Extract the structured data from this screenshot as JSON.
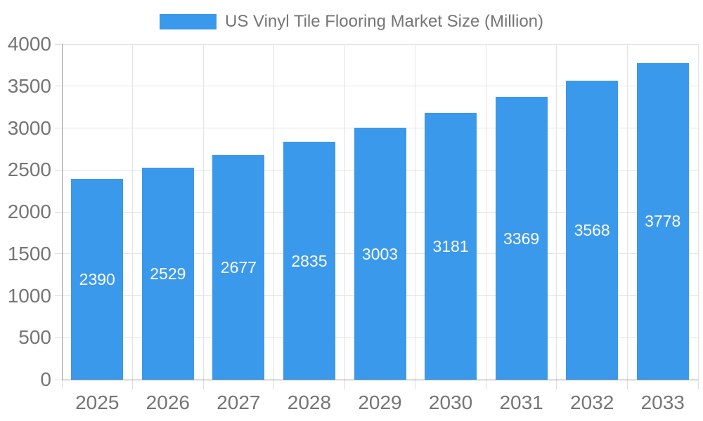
{
  "legend": {
    "label": "US Vinyl Tile Flooring Market Size (Million)",
    "swatch_color": "#3b99ec"
  },
  "colors": {
    "bar": "#3b99ec",
    "grid": "#e3e3e3",
    "axis": "#9a9a9a",
    "tick": "#dcdcdc",
    "tick_label": "#757575",
    "bar_value_label": "#ffffff",
    "background": "#ffffff"
  },
  "chart_data": {
    "type": "bar",
    "title": "US Vinyl Tile Flooring Market Size (Million)",
    "categories": [
      "2025",
      "2026",
      "2027",
      "2028",
      "2029",
      "2030",
      "2031",
      "2032",
      "2033"
    ],
    "values": [
      2390,
      2529,
      2677,
      2835,
      3003,
      3181,
      3369,
      3568,
      3778
    ],
    "value_labels": [
      "2390",
      "2529",
      "2677",
      "2835",
      "3003",
      "3181",
      "3369",
      "3568",
      "3778"
    ],
    "xlabel": "",
    "ylabel": "",
    "ylim": [
      0,
      4000
    ],
    "ytick_step": 500,
    "ytick_labels": [
      "0",
      "500",
      "1000",
      "1500",
      "2000",
      "2500",
      "3000",
      "3500",
      "4000"
    ],
    "grid": true,
    "legend_position": "top",
    "value_labels_inside": true
  }
}
